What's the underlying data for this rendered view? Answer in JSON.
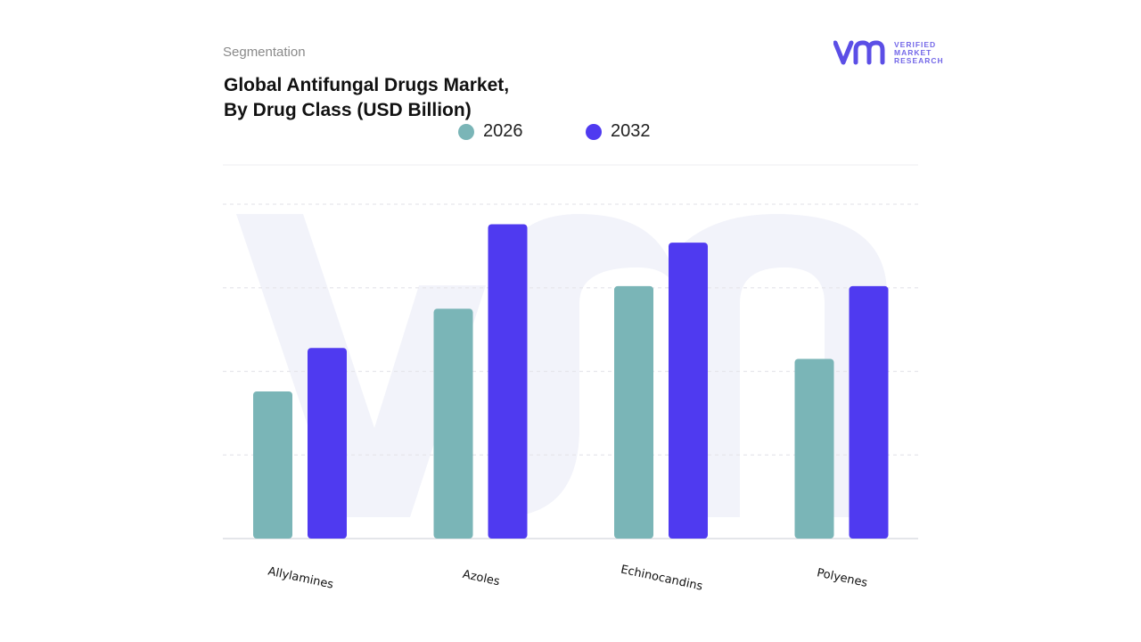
{
  "header": {
    "segment_label": "Segmentation",
    "title_line1": "Global Antifungal Drugs Market,",
    "title_line2": "By Drug Class (USD Billion)"
  },
  "logo": {
    "line1": "VERIFIED",
    "line2": "MARKET",
    "line3": "RESEARCH",
    "mark_icon": "vmr-logo-icon",
    "color": "#5b4ee6"
  },
  "colors": {
    "series_2026": "#7ab5b7",
    "series_2032": "#4f3af0",
    "watermark": "#f2f3fa",
    "grid": "#e6e6ec"
  },
  "chart_data": {
    "type": "bar",
    "title": "Global Antifungal Drugs Market, By Drug Class (USD Billion)",
    "categories": [
      "Allylamines",
      "Azoles",
      "Echinocandins",
      "Polyenes"
    ],
    "series": [
      {
        "name": "2026",
        "values": [
          1.76,
          2.75,
          3.02,
          2.15
        ]
      },
      {
        "name": "2032",
        "values": [
          2.28,
          3.76,
          3.54,
          3.02
        ]
      }
    ],
    "ylim": [
      0,
      4.0
    ],
    "gridlines": [
      1,
      2,
      3,
      4
    ],
    "grid": true,
    "legend": "top-center",
    "xlabel": "",
    "ylabel": ""
  }
}
